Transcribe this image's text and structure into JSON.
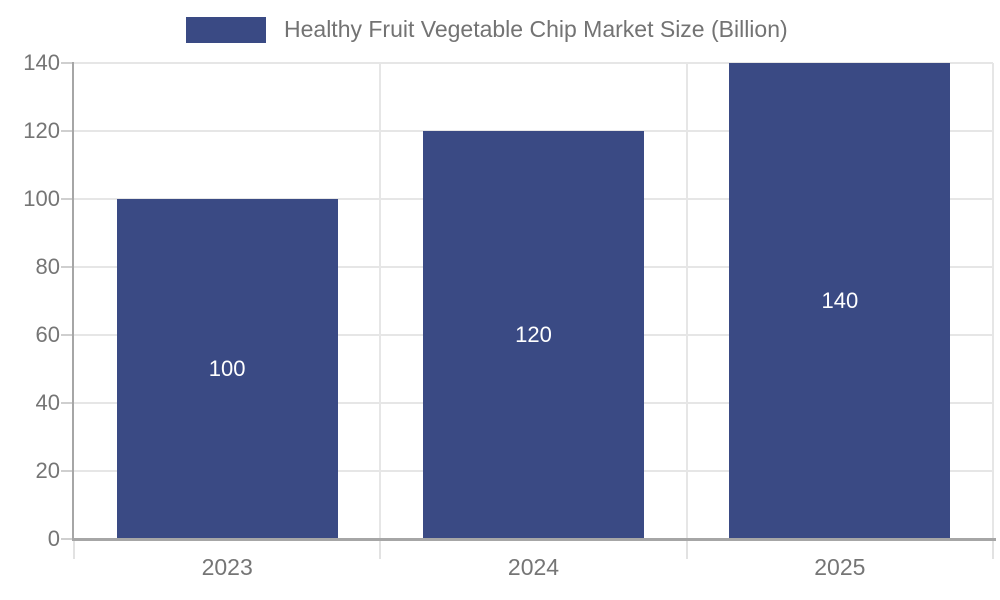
{
  "legend": {
    "label": "Healthy Fruit Vegetable Chip Market Size (Billion)"
  },
  "chart_data": {
    "type": "bar",
    "title": "Healthy Fruit Vegetable Chip Market Size (Billion)",
    "categories": [
      "2023",
      "2024",
      "2025"
    ],
    "values": [
      100,
      120,
      140
    ],
    "bar_value_labels": [
      "100",
      "120",
      "140"
    ],
    "xlabel": "",
    "ylabel": "",
    "ylim": [
      0,
      140
    ],
    "yticks": [
      0,
      20,
      40,
      60,
      80,
      100,
      120,
      140
    ],
    "grid": true,
    "legend_position": "top",
    "colors": {
      "bar": "#3a4a84",
      "value_label_text": "#ffffff",
      "axis_text": "#757575",
      "legend_text": "#737373",
      "gridline": "#e6e6e6",
      "axis_line": "#a6a6a6",
      "tick": "#cfcfcf"
    }
  }
}
